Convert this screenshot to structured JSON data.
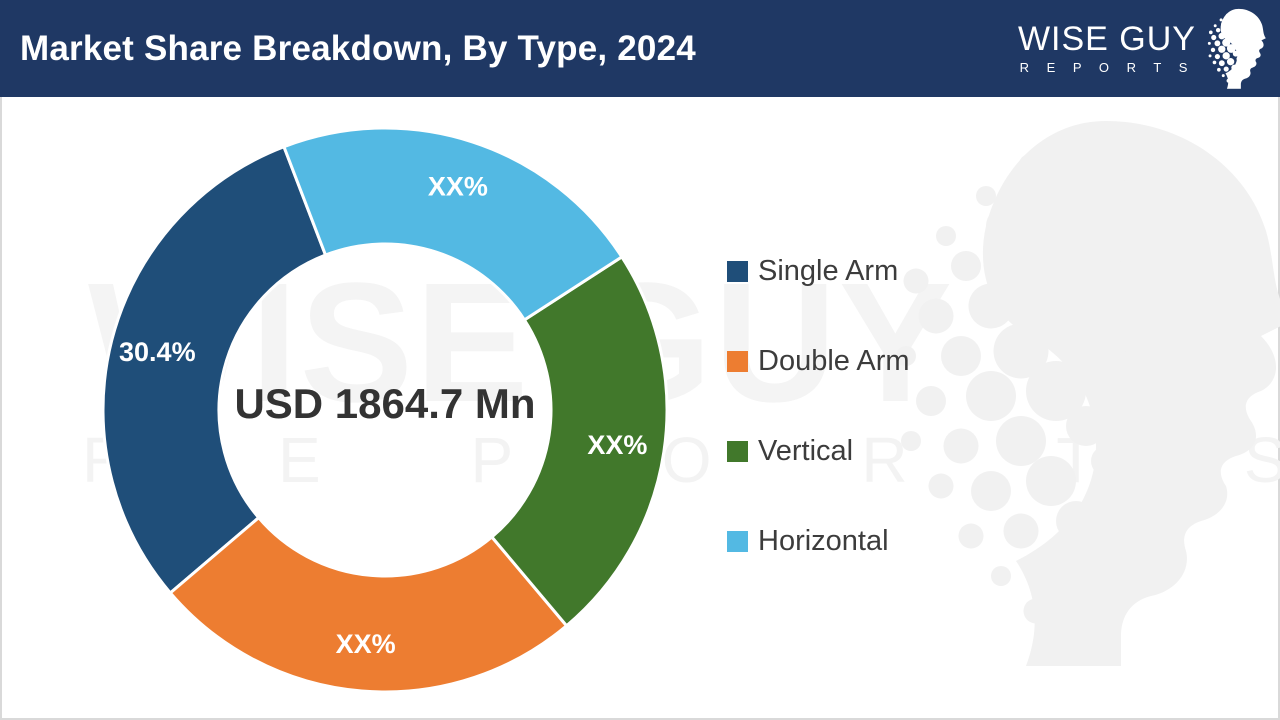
{
  "header": {
    "title": "Market Share Breakdown, By Type, 2024"
  },
  "logo": {
    "name_line": "WISE GUY",
    "reports_line": "R E P O R T S"
  },
  "watermark": {
    "name_line": "WISE GUY",
    "reports_line": "R E P O R T S"
  },
  "theme": {
    "header_bg": "#1F3864",
    "title_text": "#FFFFFF",
    "center_text": "#333333",
    "legend_text": "#3C3C3C",
    "watermark_color": "#F3F3F3",
    "slice_gap_stroke": "#FFFFFF"
  },
  "chart_data": {
    "type": "pie",
    "subtype": "donut",
    "title": "Market Share Breakdown, By Type, 2024",
    "center_label": "USD 1864.7 Mn",
    "start_angle_deg": 111,
    "direction": "counterclockwise",
    "legend_position": "right",
    "slices": [
      {
        "label": "Single Arm",
        "value_pct": 30.4,
        "display_label": "30.4%",
        "color": "#1F4E79"
      },
      {
        "label": "Double Arm",
        "value_pct": 24.9,
        "display_label": "XX%",
        "color": "#ED7D31"
      },
      {
        "label": "Vertical",
        "value_pct": 23.0,
        "display_label": "XX%",
        "color": "#41782B"
      },
      {
        "label": "Horizontal",
        "value_pct": 21.7,
        "display_label": "XX%",
        "color": "#53B9E3"
      }
    ]
  }
}
